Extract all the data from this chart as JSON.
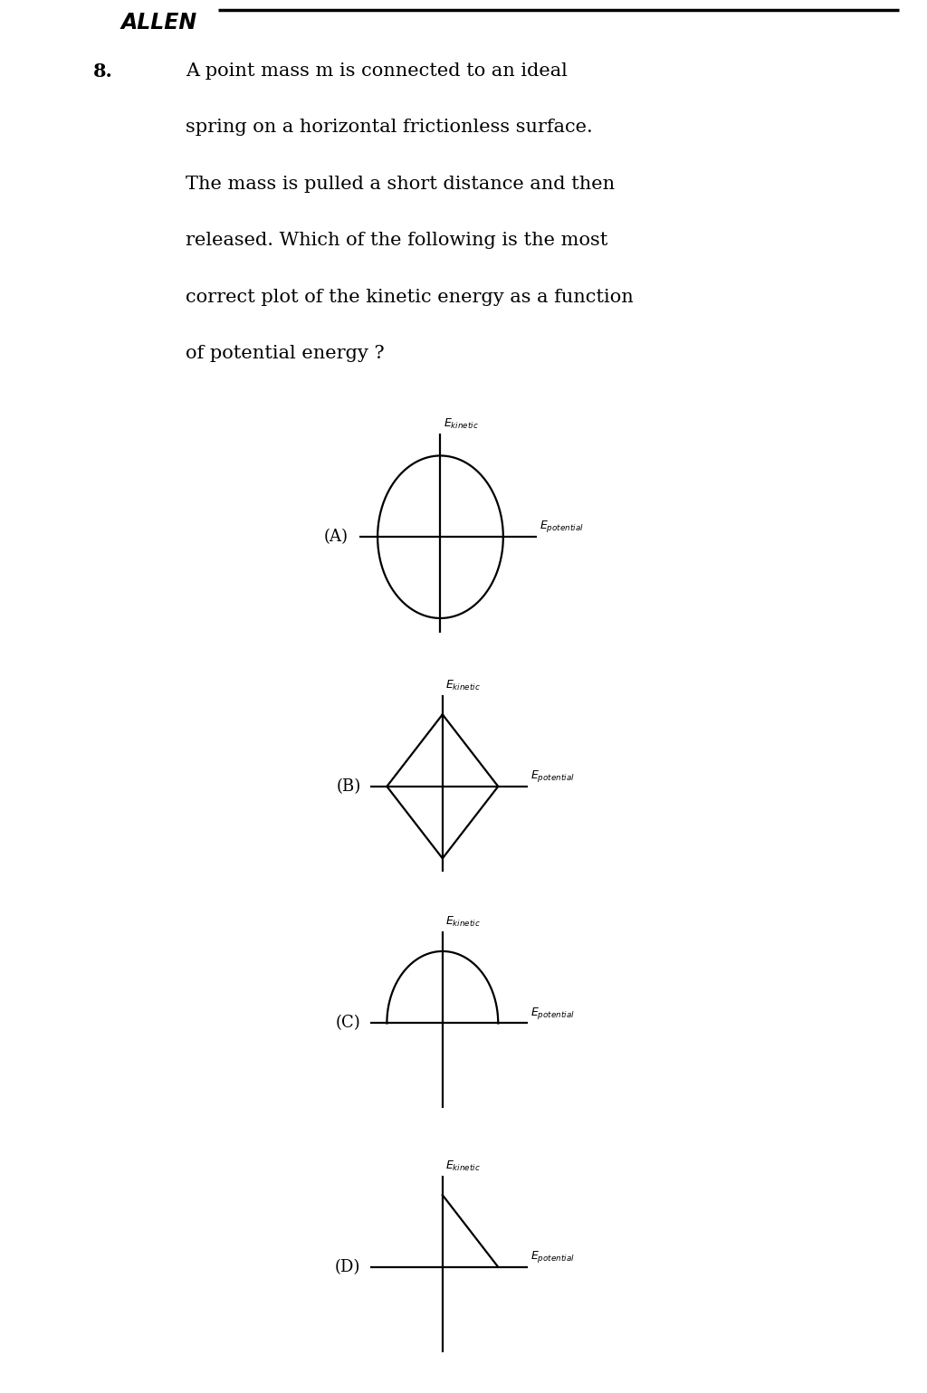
{
  "background_color": "#ffffff",
  "text_color": "#000000",
  "line_color": "#000000",
  "header_text": "ALLEN",
  "question_number": "8.",
  "question_lines": [
    "A point mass m is connected to an ideal",
    "spring on a horizontal frictionless surface.",
    "The mass is pulled a short distance and then",
    "released. Which of the following is the most",
    "correct plot of the kinetic energy as a function",
    "of potential energy ?"
  ],
  "options": [
    "(A)",
    "(B)",
    "(C)",
    "(D)"
  ],
  "label_kinetic": "E_kinetic",
  "label_potential": "E_potential",
  "fig_width": 10.24,
  "fig_height": 15.39,
  "dpi": 100
}
